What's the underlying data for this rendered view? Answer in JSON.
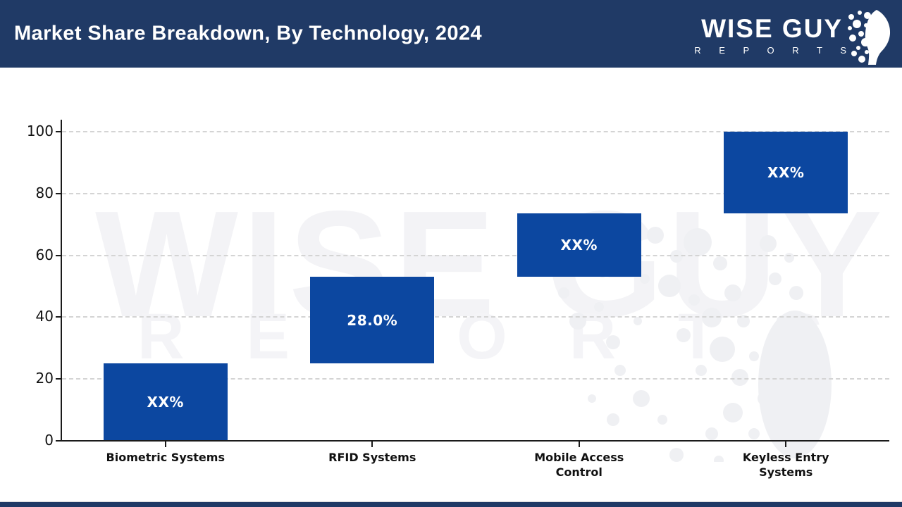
{
  "header": {
    "title": "Market Share Breakdown, By Technology, 2024",
    "logo_line1": "WISE GUY",
    "logo_line2": "R E P O R T S"
  },
  "watermark": {
    "line1": "WISE GUY",
    "line2": "REPORTS"
  },
  "chart_data": {
    "type": "bar",
    "subtype": "waterfall",
    "title": "Market Share Breakdown, By Technology, 2024",
    "xlabel": "",
    "ylabel": "",
    "ylim": [
      0,
      100
    ],
    "yticks": [
      0,
      20,
      40,
      60,
      80,
      100
    ],
    "grid": "horizontal-dashed",
    "legend": "none",
    "bar_color": "#0c47a0",
    "bar_label_color": "#ffffff",
    "categories": [
      "Biometric Systems",
      "RFID Systems",
      "Mobile Access Control",
      "Keyless Entry Systems"
    ],
    "segments": [
      {
        "category": "Biometric Systems",
        "start": 0,
        "end": 25,
        "value": 25,
        "label": "XX%"
      },
      {
        "category": "RFID Systems",
        "start": 25,
        "end": 53,
        "value": 28,
        "label": "28.0%"
      },
      {
        "category": "Mobile Access Control",
        "start": 53,
        "end": 73.5,
        "value": 20.5,
        "label": "XX%"
      },
      {
        "category": "Keyless Entry Systems",
        "start": 73.5,
        "end": 100,
        "value": 26.5,
        "label": "XX%"
      }
    ]
  },
  "colors": {
    "header_bg": "#203a66",
    "bar": "#0c47a0",
    "axis": "#1a1a1a",
    "gridline": "#d4d4d4",
    "watermark": "#f3f3f6",
    "footer_bg": "#203a66"
  }
}
